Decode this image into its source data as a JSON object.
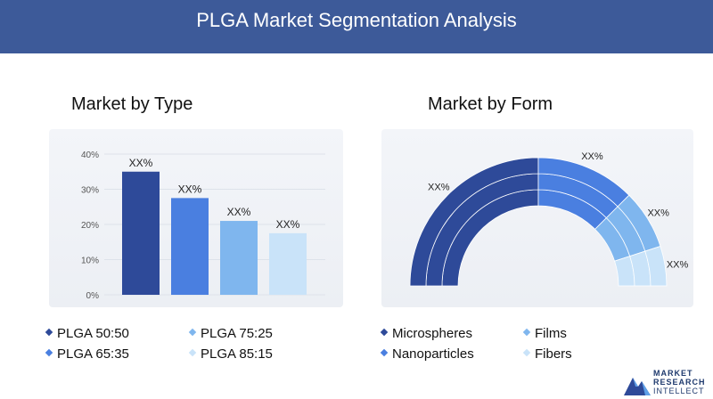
{
  "header": {
    "title": "PLGA Market Segmentation Analysis"
  },
  "colors": {
    "header_bg": "#3d5a99",
    "dark": "#2e4a99",
    "mid": "#4a7fe0",
    "light": "#7fb6ee",
    "pale": "#c9e3f9"
  },
  "logo": {
    "line1": "MARKET",
    "line2": "RESEARCH",
    "line3": "INTELLECT",
    "icon": "mountain-logo-icon"
  },
  "chart_data": [
    {
      "type": "bar",
      "title": "Market by Type",
      "categories": [
        "PLGA 50:50",
        "PLGA 75:25",
        "PLGA 65:35",
        "PLGA 85:15"
      ],
      "values": [
        35,
        27.5,
        21,
        17.5
      ],
      "data_labels": [
        "XX%",
        "XX%",
        "XX%",
        "XX%"
      ],
      "colors": [
        "#2e4a99",
        "#4a7fe0",
        "#7fb6ee",
        "#c9e3f9"
      ],
      "yticks": [
        "0%",
        "10%",
        "20%",
        "30%",
        "40%"
      ],
      "ylim": [
        0,
        40
      ],
      "grid": true,
      "legend": [
        {
          "label": "PLGA 50:50",
          "color": "#2e4a99"
        },
        {
          "label": "PLGA 75:25",
          "color": "#7fb6ee"
        },
        {
          "label": "PLGA 65:35",
          "color": "#4a7fe0"
        },
        {
          "label": "PLGA 85:15",
          "color": "#c9e3f9"
        }
      ]
    },
    {
      "type": "pie",
      "title": "Market by Form",
      "style": "semicircle-donut",
      "categories": [
        "Microspheres",
        "Nanoparticles",
        "Films",
        "Fibers"
      ],
      "values": [
        50,
        25,
        15,
        10
      ],
      "data_labels": [
        "XX%",
        "XX%",
        "XX%",
        "XX%"
      ],
      "colors": [
        "#2e4a99",
        "#4a7fe0",
        "#7fb6ee",
        "#c9e3f9"
      ],
      "legend": [
        {
          "label": "Microspheres",
          "color": "#2e4a99"
        },
        {
          "label": "Films",
          "color": "#7fb6ee"
        },
        {
          "label": "Nanoparticles",
          "color": "#4a7fe0"
        },
        {
          "label": "Fibers",
          "color": "#c9e3f9"
        }
      ]
    }
  ]
}
